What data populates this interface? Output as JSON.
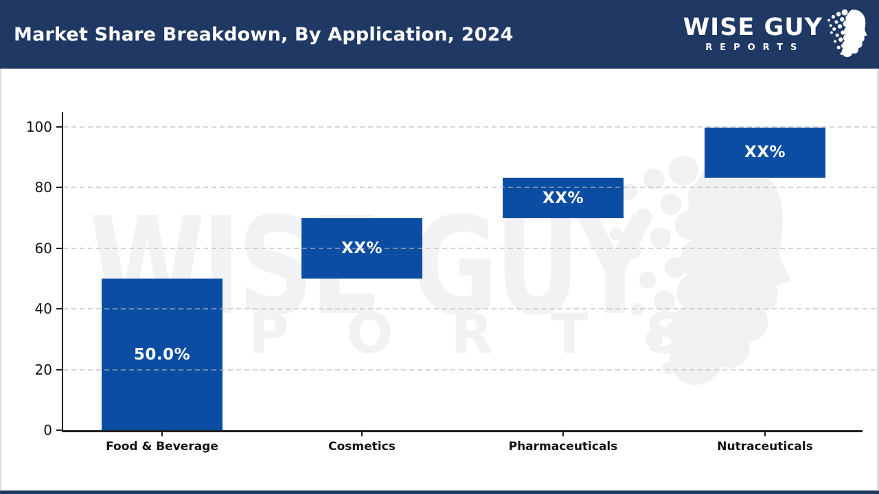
{
  "header": {
    "title": "Market Share Breakdown, By Application, 2024",
    "logo": {
      "line1": "WISE GUY",
      "line2": "REPORTS"
    }
  },
  "watermark": {
    "line1": "WISE GUY",
    "line2": "P O R T S"
  },
  "chart_data": {
    "type": "bar",
    "subtype": "floating-waterfall",
    "title": "Market Share Breakdown, By Application, 2024",
    "categories": [
      "Food & Beverage",
      "Cosmetics",
      "Pharmaceuticals",
      "Nutraceuticals"
    ],
    "segments": [
      {
        "category": "Food & Beverage",
        "start": 0,
        "end": 50,
        "label": "50.0%"
      },
      {
        "category": "Cosmetics",
        "start": 50,
        "end": 69.8,
        "label": "XX%"
      },
      {
        "category": "Pharmaceuticals",
        "start": 69.8,
        "end": 83.3,
        "label": "XX%"
      },
      {
        "category": "Nutraceuticals",
        "start": 83.3,
        "end": 99.8,
        "label": "XX%"
      }
    ],
    "xlabel": "",
    "ylabel": "",
    "ylim": [
      0,
      100
    ],
    "yticks": [
      0,
      20,
      40,
      60,
      80,
      100
    ],
    "grid": "horizontal-dashed",
    "legend": "none",
    "bar_color": "#0B4DA2",
    "label_color": "#ffffff"
  },
  "colors": {
    "header_bg": "#1F3864",
    "bar": "#0B4DA2",
    "axis": "#1d1d1d",
    "grid": "#b9b9b9",
    "watermark": "#f1f2f4"
  }
}
